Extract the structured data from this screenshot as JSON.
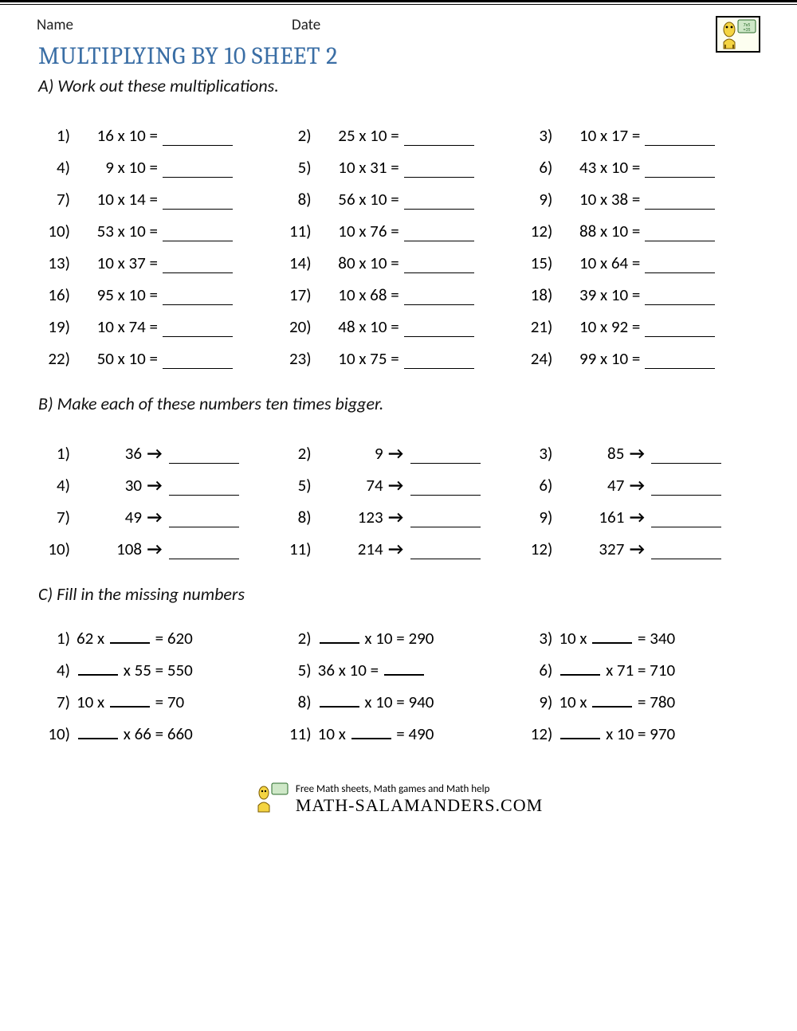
{
  "header": {
    "name_label": "Name",
    "date_label": "Date"
  },
  "title": "MULTIPLYING BY 10 SHEET 2",
  "colors": {
    "title": "#3a6ea5",
    "text": "#111111",
    "rule": "#000000"
  },
  "sectionA": {
    "instruction": "A) Work out these multiplications.",
    "items": [
      "16 x 10 =",
      "25 x 10 =",
      "10 x 17 =",
      "9 x 10 =",
      "10 x 31 =",
      "43 x 10 =",
      "10 x 14 =",
      "56 x 10 =",
      "10 x 38 =",
      "53 x 10 =",
      "10 x 76 =",
      "88 x 10 =",
      "10 x 37 =",
      "80 x 10 =",
      "10 x 64 =",
      "95 x 10 =",
      "10 x 68 =",
      "39 x 10 =",
      "10 x 74 =",
      "48 x 10 =",
      "10 x 92 =",
      "50 x 10 =",
      "10 x 75 =",
      "99 x 10 ="
    ]
  },
  "sectionB": {
    "instruction": "B) Make each of these numbers ten times bigger.",
    "items": [
      "36",
      "9",
      "85",
      "30",
      "74",
      "47",
      "49",
      "123",
      "161",
      "108",
      "214",
      "327"
    ]
  },
  "sectionC": {
    "instruction": "C) Fill in the missing numbers",
    "items": [
      {
        "pre": "62 x ",
        "post": " = 620"
      },
      {
        "pre": "",
        "post": " x 10 = 290"
      },
      {
        "pre": "10 x ",
        "post": " = 340"
      },
      {
        "pre": "",
        "post": " x 55 = 550"
      },
      {
        "pre": "36 x 10 = ",
        "post": ""
      },
      {
        "pre": "",
        "post": " x 71 = 710"
      },
      {
        "pre": "10 x ",
        "post": " = 70"
      },
      {
        "pre": "",
        "post": " x 10 = 940"
      },
      {
        "pre": "10 x ",
        "post": " = 780"
      },
      {
        "pre": "",
        "post": " x 66 = 660"
      },
      {
        "pre": "10 x ",
        "post": " = 490"
      },
      {
        "pre": "",
        "post": " x 10 = 970"
      }
    ]
  },
  "footer": {
    "tagline": "Free Math sheets, Math games and Math help",
    "site": "ATH-SALAMANDERS.COM"
  }
}
